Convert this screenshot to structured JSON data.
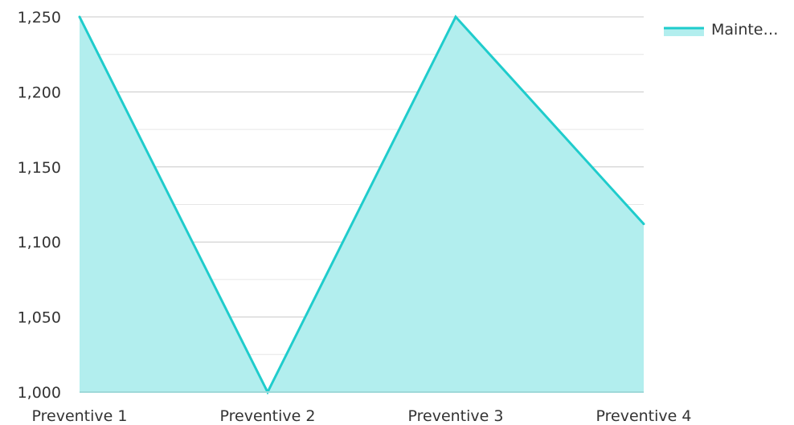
{
  "chart_data": {
    "type": "area",
    "categories": [
      "Preventive 1",
      "Preventive 2",
      "Preventive 3",
      "Preventive 4"
    ],
    "series": [
      {
        "name": "Mainte…",
        "values": [
          1250,
          1000,
          1250,
          1112
        ]
      }
    ],
    "ylim": [
      1000,
      1250
    ],
    "y_ticks": [
      1000,
      1050,
      1100,
      1150,
      1200,
      1250
    ],
    "y_tick_labels": [
      "1,000",
      "1,050",
      "1,100",
      "1,150",
      "1,200",
      "1,250"
    ],
    "grid": true,
    "legend_position": "top-right",
    "colors": {
      "line": "#1fcccc",
      "fill": "#b2eeee",
      "grid_major": "#c8c8c8",
      "grid_minor": "#e6e6e6",
      "axis": "#9fd9d9"
    }
  }
}
